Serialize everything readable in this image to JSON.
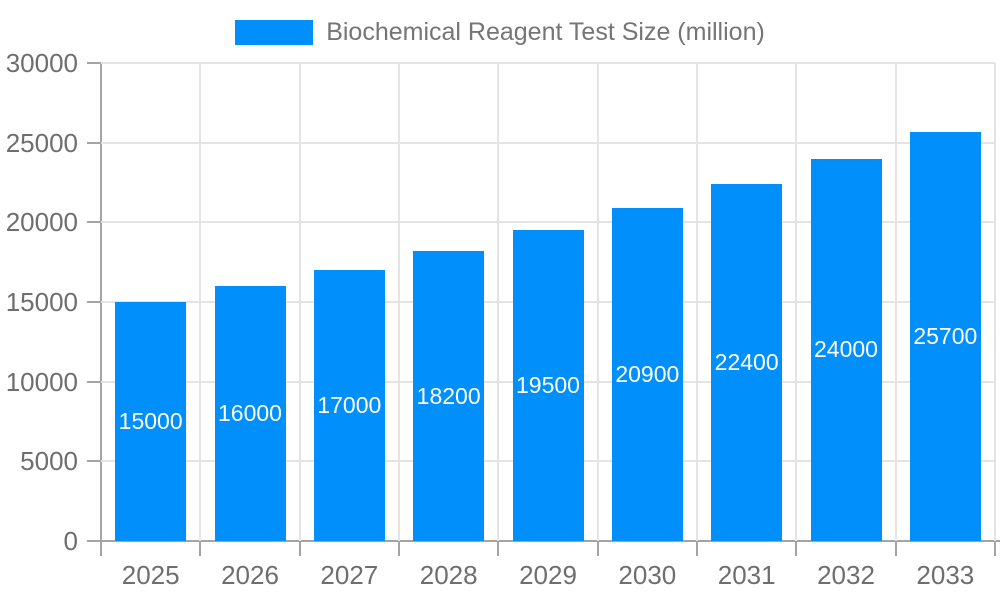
{
  "legend": {
    "label": "Biochemical Reagent Test Size (million)"
  },
  "chart_data": {
    "type": "bar",
    "title": "Biochemical Reagent Test Size (million)",
    "legend_position": "top",
    "categories": [
      "2025",
      "2026",
      "2027",
      "2028",
      "2029",
      "2030",
      "2031",
      "2032",
      "2033"
    ],
    "series": [
      {
        "name": "Biochemical Reagent Test Size (million)",
        "values": [
          15000,
          16000,
          17000,
          18200,
          19500,
          20900,
          22400,
          24000,
          25700
        ]
      }
    ],
    "data_labels_shown": true,
    "xlabel": "",
    "ylabel": "",
    "ylim": [
      0,
      30000
    ],
    "ytick_step": 5000,
    "yticks": [
      "0",
      "5000",
      "10000",
      "15000",
      "20000",
      "25000",
      "30000"
    ],
    "grid": true,
    "colors": {
      "bar": "#008FFB",
      "bar_label_text": "#FFFFFF",
      "grid_line": "#E4E4E4",
      "axis_line": "#A4A4A4",
      "tick_mark": "#A4A4A4",
      "axis_text": "#6E6E6E",
      "legend_text": "#757575",
      "background": "#FFFFFF"
    }
  }
}
